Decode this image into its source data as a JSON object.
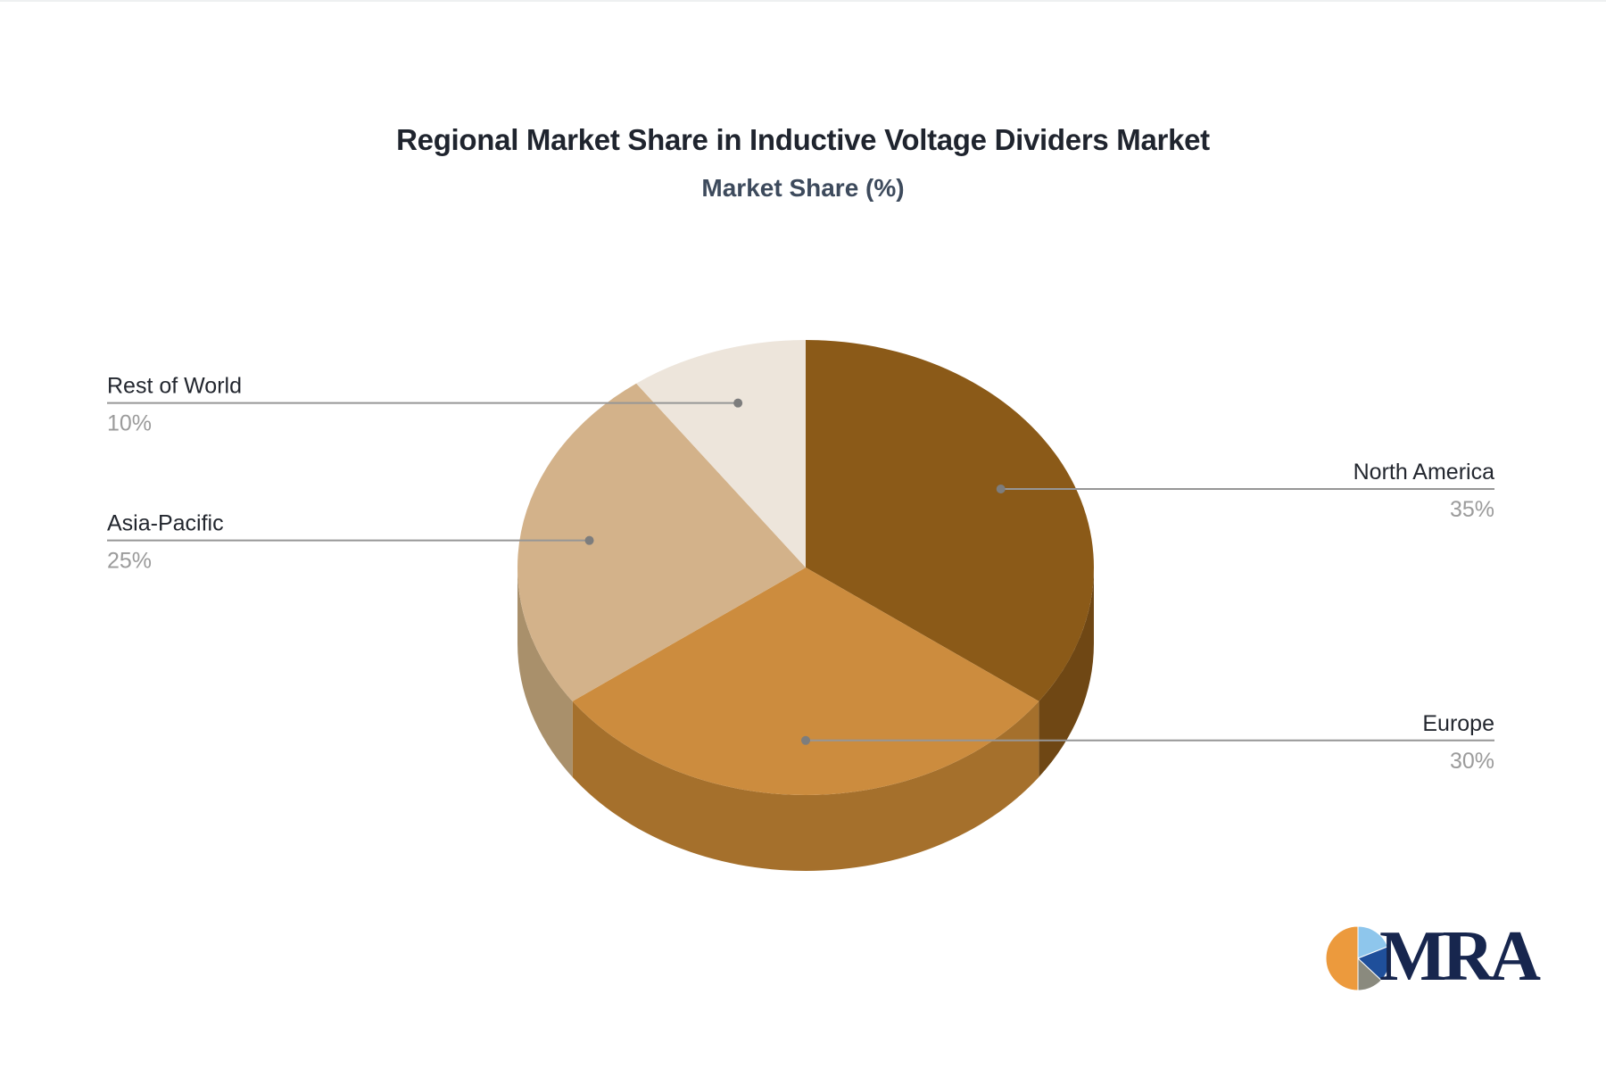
{
  "header": {
    "title": "Regional Market Share in Inductive Voltage Dividers Market",
    "subtitle": "Market Share (%)"
  },
  "chart_data": {
    "type": "pie",
    "style": "3d",
    "title": "Regional Market Share in Inductive Voltage Dividers Market",
    "subtitle": "Market Share (%)",
    "unit": "%",
    "start_angle_deg": 90,
    "direction": "clockwise",
    "legend_position": "callout-labels",
    "categories": [
      "North America",
      "Europe",
      "Asia-Pacific",
      "Rest of World"
    ],
    "values": [
      35,
      30,
      25,
      10
    ],
    "slices": [
      {
        "label": "North America",
        "value": 35,
        "value_text": "35%",
        "color": "#8B5A18",
        "side_color": "#6F4714"
      },
      {
        "label": "Europe",
        "value": 30,
        "value_text": "30%",
        "color": "#CC8C3E",
        "side_color": "#A5702C"
      },
      {
        "label": "Asia-Pacific",
        "value": 25,
        "value_text": "25%",
        "color": "#D3B28A",
        "side_color": "#A9906B"
      },
      {
        "label": "Rest of World",
        "value": 10,
        "value_text": "10%",
        "color": "#EDE5DB",
        "side_color": "#C9BCAD"
      }
    ],
    "label_color": "#23272f",
    "value_color": "#9b9b9b",
    "line_color": "#969696",
    "dot_color": "#7d7d7d"
  },
  "logo": {
    "text": "MRA",
    "text_color": "#17264e",
    "pie_slices": [
      {
        "color": "#8EC6EC",
        "value": 19
      },
      {
        "color": "#1F4F9B",
        "value": 18
      },
      {
        "color": "#8A8A7E",
        "value": 13
      },
      {
        "color": "#EC9A3D",
        "value": 50
      }
    ]
  }
}
